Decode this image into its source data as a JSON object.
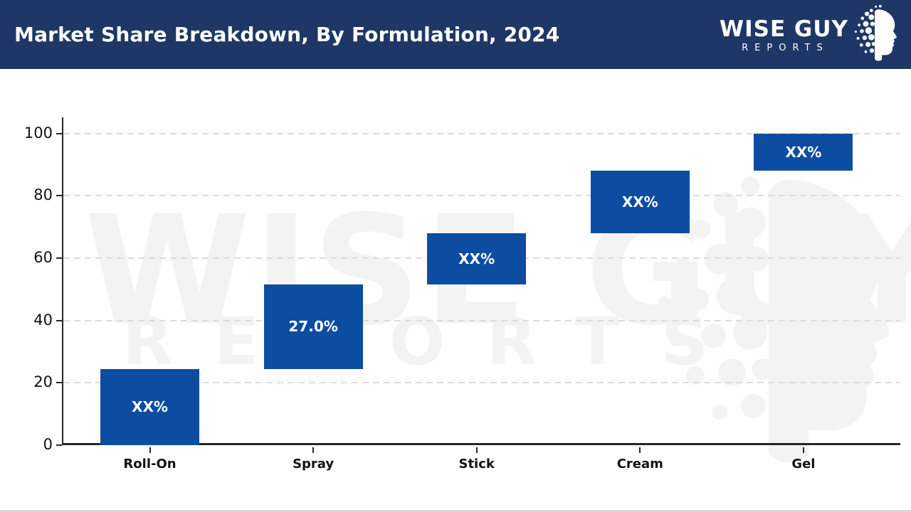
{
  "header": {
    "title": "Market Share Breakdown, By Formulation, 2024",
    "logo": {
      "wordmark": "WISE GUY",
      "subtext": "REPORTS"
    }
  },
  "watermark": {
    "line1": "WISE GUY",
    "line2": "REPORTS"
  },
  "colors": {
    "header_bg": "#1f3766",
    "bar": "#0d4da1",
    "bar_label": "#ffffff",
    "gridline": "#dcdcdc",
    "axis": "#262626",
    "watermark": "#f3f3f3"
  },
  "chart_data": {
    "type": "bar",
    "subtype": "floating-waterfall",
    "title": "Market Share Breakdown, By Formulation, 2024",
    "categories": [
      "Roll-On",
      "Spray",
      "Stick",
      "Cream",
      "Gel"
    ],
    "bars": [
      {
        "category": "Roll-On",
        "start": 0,
        "end": 24.5,
        "label": "XX%"
      },
      {
        "category": "Spray",
        "start": 24.5,
        "end": 51.5,
        "label": "27.0%",
        "value": 27.0
      },
      {
        "category": "Stick",
        "start": 51.5,
        "end": 68,
        "label": "XX%"
      },
      {
        "category": "Cream",
        "start": 68,
        "end": 88,
        "label": "XX%"
      },
      {
        "category": "Gel",
        "start": 88,
        "end": 100,
        "label": "XX%"
      }
    ],
    "xlabel": "",
    "ylabel": "",
    "yticks": [
      0,
      20,
      40,
      60,
      80,
      100
    ],
    "ylim": [
      0,
      105
    ],
    "grid": "horizontal-dashed",
    "legend": "none",
    "bar_color": "#0d4da1",
    "bar_label_color": "#ffffff"
  }
}
